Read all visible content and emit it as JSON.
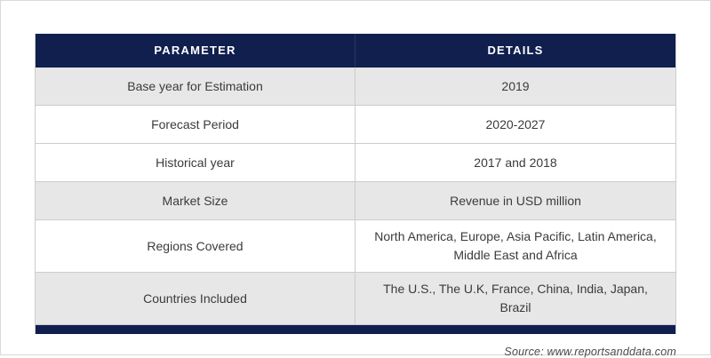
{
  "table": {
    "headers": {
      "parameter": "PARAMETER",
      "details": "DETAILS"
    },
    "rows": [
      {
        "parameter": "Base year for Estimation",
        "details": "2019"
      },
      {
        "parameter": "Forecast Period",
        "details": "2020-2027"
      },
      {
        "parameter": "Historical year",
        "details": "2017 and 2018"
      },
      {
        "parameter": "Market Size",
        "details": "Revenue in USD million"
      },
      {
        "parameter": "Regions Covered",
        "details": "North America, Europe, Asia Pacific, Latin America, Middle East and Africa"
      },
      {
        "parameter": "Countries Included",
        "details": "The U.S., The  U.K, France, China, India, Japan, Brazil"
      }
    ]
  },
  "source": "Source: www.reportsanddata.com",
  "colors": {
    "header_bg": "#101f4e",
    "row_shaded": "#e7e7e7",
    "border": "#cccccc"
  }
}
